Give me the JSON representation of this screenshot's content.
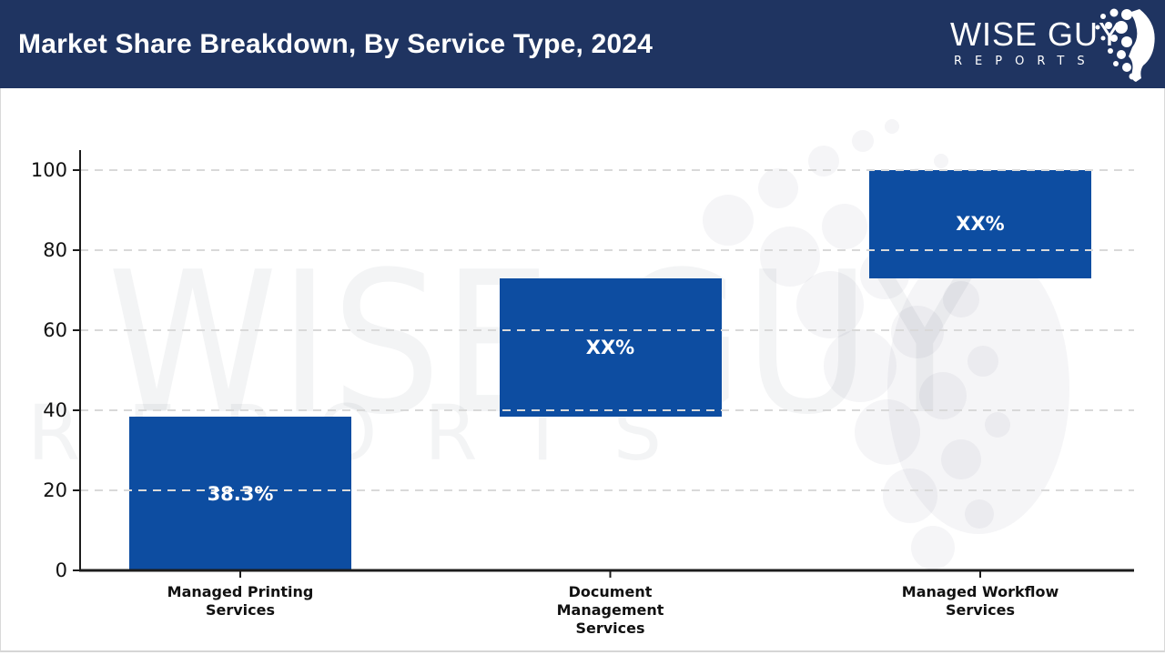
{
  "header": {
    "title": "Market Share Breakdown, By Service Type, 2024",
    "background_color": "#1f3461",
    "logo": {
      "line1": "WISE GUY",
      "line2": "REPORTS",
      "head_icon": "dotted-head-profile-icon"
    }
  },
  "watermark": {
    "line1": "WISE GUY",
    "line2": "REPORTS"
  },
  "chart_data": {
    "type": "bar",
    "subtype": "floating-segment (stepped market-share breakdown)",
    "title": "Market Share Breakdown, By Service Type, 2024",
    "categories": [
      "Managed Printing\nServices",
      "Document\nManagement\nServices",
      "Managed Workflow\nServices"
    ],
    "segments": [
      {
        "start": 0,
        "end": 38.3,
        "label": "38.3%"
      },
      {
        "start": 38.3,
        "end": 73,
        "label": "XX%"
      },
      {
        "start": 73,
        "end": 100,
        "label": "XX%"
      }
    ],
    "values": [
      38.3,
      34.7,
      27
    ],
    "y_ticks": [
      0,
      20,
      40,
      60,
      80,
      100
    ],
    "ylim": [
      0,
      105
    ],
    "grid": "horizontal dashed, drawn above bars",
    "legend": "none",
    "bar_color": "#0d4da1",
    "bar_label_color": "#ffffff",
    "grid_color": "#d9d9d9",
    "axis_color": "#1c1c1c",
    "tick_label_color": "#111111"
  }
}
